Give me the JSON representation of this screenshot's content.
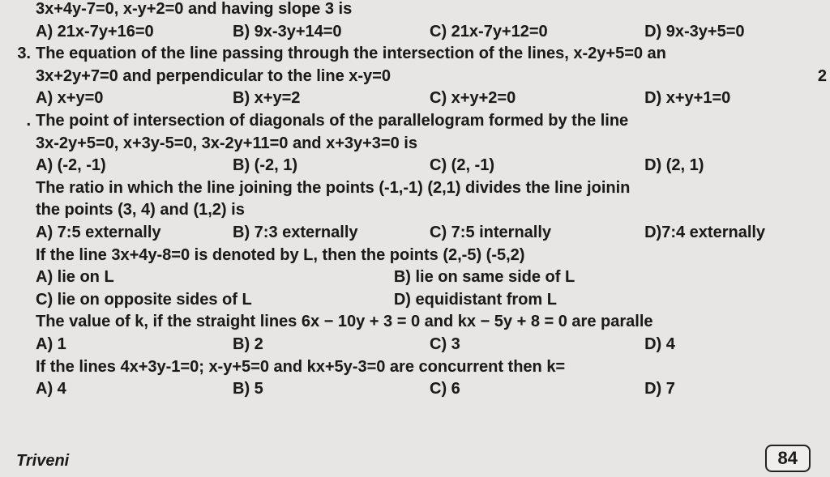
{
  "partial_top": "3x+4y-7=0, x-y+2=0 and having slope 3 is",
  "q2": {
    "options": {
      "a": "A) 21x-7y+16=0",
      "b": "B) 9x-3y+14=0",
      "c": "C) 21x-7y+12=0",
      "d": "D) 9x-3y+5=0"
    }
  },
  "q3": {
    "num": "3.",
    "line1": "The equation of the line passing through the intersection of the lines, x-2y+5=0 an",
    "line2": "3x+2y+7=0 and perpendicular to the line x-y=0",
    "right_margin": "2",
    "options": {
      "a": "A) x+y=0",
      "b": "B) x+y=2",
      "c": "C) x+y+2=0",
      "d": "D) x+y+1=0"
    }
  },
  "q4": {
    "num": ".",
    "line1": "The point of intersection of diagonals of the parallelogram formed by the line",
    "line2": "3x-2y+5=0, x+3y-5=0, 3x-2y+11=0 and x+3y+3=0 is",
    "options": {
      "a": "A) (-2, -1)",
      "b": "B) (-2, 1)",
      "c": "C) (2, -1)",
      "d": "D) (2, 1)"
    }
  },
  "q5": {
    "line1": "The ratio in which the line joining the points (-1,-1) (2,1) divides the line joinin",
    "line2": "the points (3, 4) and (1,2) is",
    "options": {
      "a": "A) 7:5 externally",
      "b": "B) 7:3 externally",
      "c": "C) 7:5 internally",
      "d": "D)7:4 externally"
    }
  },
  "q6": {
    "line1": "If the line 3x+4y-8=0 is denoted by L, then the points (2,-5) (-5,2)",
    "options": {
      "a": "A) lie on L",
      "b": "B) lie on same side of L",
      "c": "C) lie on opposite sides of L",
      "d": "D) equidistant from L"
    }
  },
  "q7": {
    "line1": "The value of k, if the straight lines 6x − 10y + 3 = 0 and kx − 5y + 8 = 0 are paralle",
    "options": {
      "a": "A) 1",
      "b": "B) 2",
      "c": "C) 3",
      "d": "D) 4"
    }
  },
  "q8": {
    "line1": "If the lines 4x+3y-1=0; x-y+5=0 and kx+5y-3=0 are concurrent then k=",
    "options": {
      "a": "A) 4",
      "b": "B) 5",
      "c": "C) 6",
      "d": "D) 7"
    }
  },
  "footer": {
    "left": "Triveni",
    "page": "84"
  }
}
